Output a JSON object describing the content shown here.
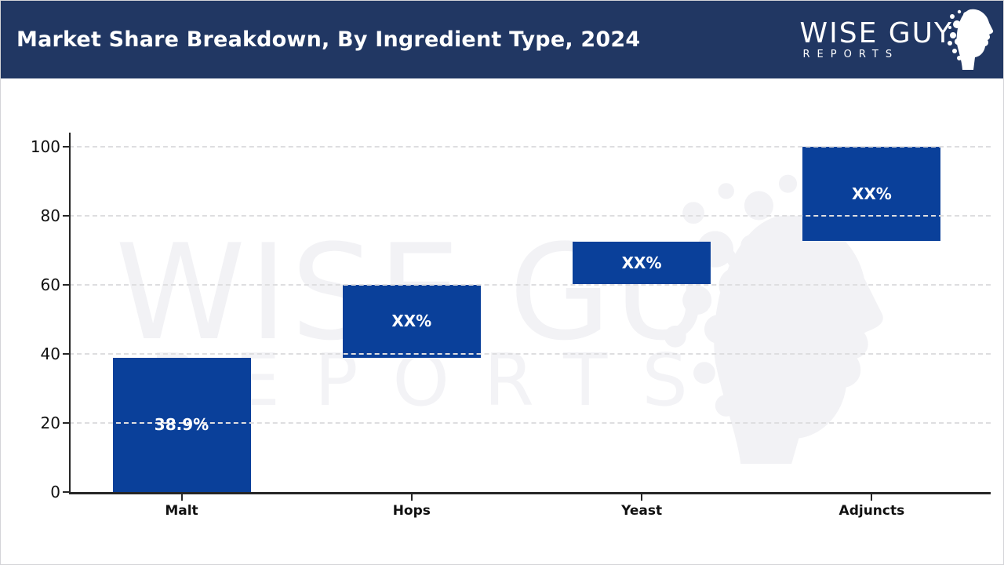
{
  "header": {
    "title": "Market Share Breakdown, By Ingredient Type, 2024",
    "logo": {
      "brand_line1": "WISE GUY",
      "brand_line2": "REPORTS"
    },
    "bg_color": "#213763"
  },
  "chart_data": {
    "type": "bar",
    "subtype": "waterfall",
    "title": "Market Share Breakdown, By Ingredient Type, 2024",
    "categories": [
      "Malt",
      "Hops",
      "Yeast",
      "Adjuncts"
    ],
    "segments": [
      {
        "category": "Malt",
        "start": 0,
        "end": 38.9,
        "value_label": "38.9%"
      },
      {
        "category": "Hops",
        "start": 38.9,
        "end": 60.1,
        "value_label": "XX%"
      },
      {
        "category": "Yeast",
        "start": 60.2,
        "end": 72.6,
        "value_label": "XX%"
      },
      {
        "category": "Adjuncts",
        "start": 72.7,
        "end": 100.0,
        "value_label": "XX%"
      }
    ],
    "xlabel": "",
    "ylabel": "",
    "y_ticks": [
      0,
      20,
      40,
      60,
      80,
      100
    ],
    "ylim": [
      0,
      104
    ],
    "grid": "horizontal-dashed, drawn over bars",
    "legend": "none",
    "bar_color": "#0a409a",
    "value_label_color": "#ffffff",
    "watermark": {
      "line1": "WISE GUY",
      "line2": "REPORTS"
    }
  }
}
